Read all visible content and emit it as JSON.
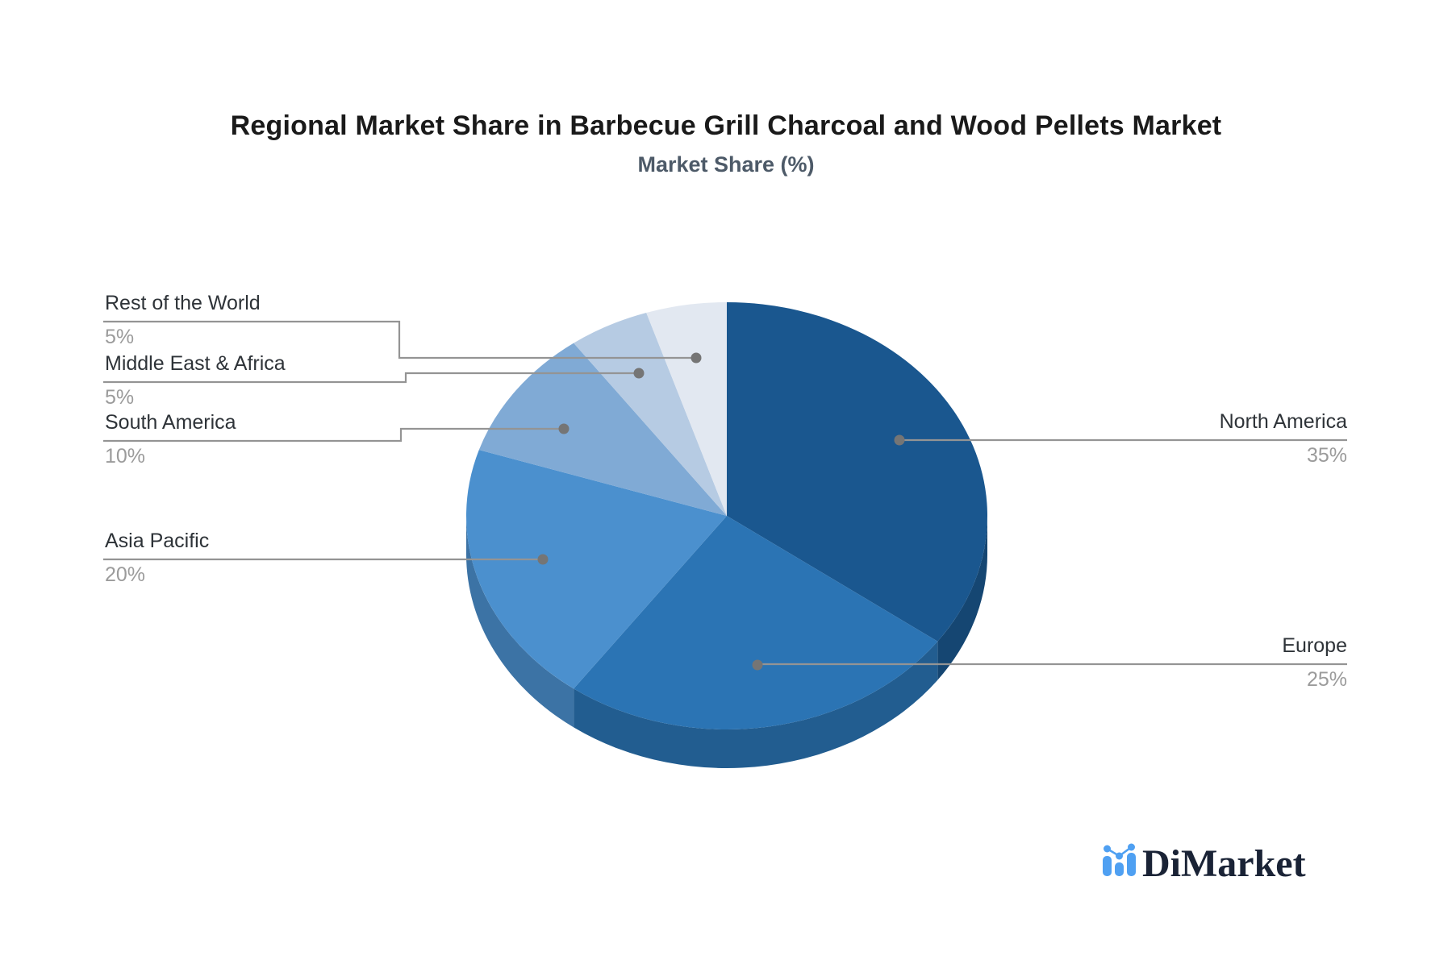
{
  "header": {
    "title": "Regional Market Share in Barbecue Grill Charcoal and Wood Pellets Market",
    "subtitle": "Market Share (%)"
  },
  "chart_data": {
    "type": "pie",
    "style": "3d",
    "unit": "%",
    "title": "Regional Market Share in Barbecue Grill Charcoal and Wood Pellets Market",
    "subtitle": "Market Share (%)",
    "start_angle_deg": -90,
    "direction": "clockwise",
    "legend_position": "callout-labels",
    "label_color": "#2e3338",
    "value_color": "#9b9b9b",
    "leader_line_color": "#949494",
    "slices": [
      {
        "label": "North America",
        "value": 35,
        "pct_label": "35%",
        "color": "#1a578f",
        "label_side": "right"
      },
      {
        "label": "Europe",
        "value": 25,
        "pct_label": "25%",
        "color": "#2b74b4",
        "label_side": "right"
      },
      {
        "label": "Asia Pacific",
        "value": 20,
        "pct_label": "20%",
        "color": "#4b90ce",
        "label_side": "left"
      },
      {
        "label": "South America",
        "value": 10,
        "pct_label": "10%",
        "color": "#80aad5",
        "label_side": "left"
      },
      {
        "label": "Middle East & Africa",
        "value": 5,
        "pct_label": "5%",
        "color": "#b6cbe3",
        "label_side": "left"
      },
      {
        "label": "Rest of the World",
        "value": 5,
        "pct_label": "5%",
        "color": "#e2e8f1",
        "label_side": "left"
      }
    ]
  },
  "brand": {
    "name": "DiMarket",
    "icon": "bar-chart-logo-icon",
    "icon_color": "#4fa0f2",
    "text_color": "#1a2336"
  }
}
